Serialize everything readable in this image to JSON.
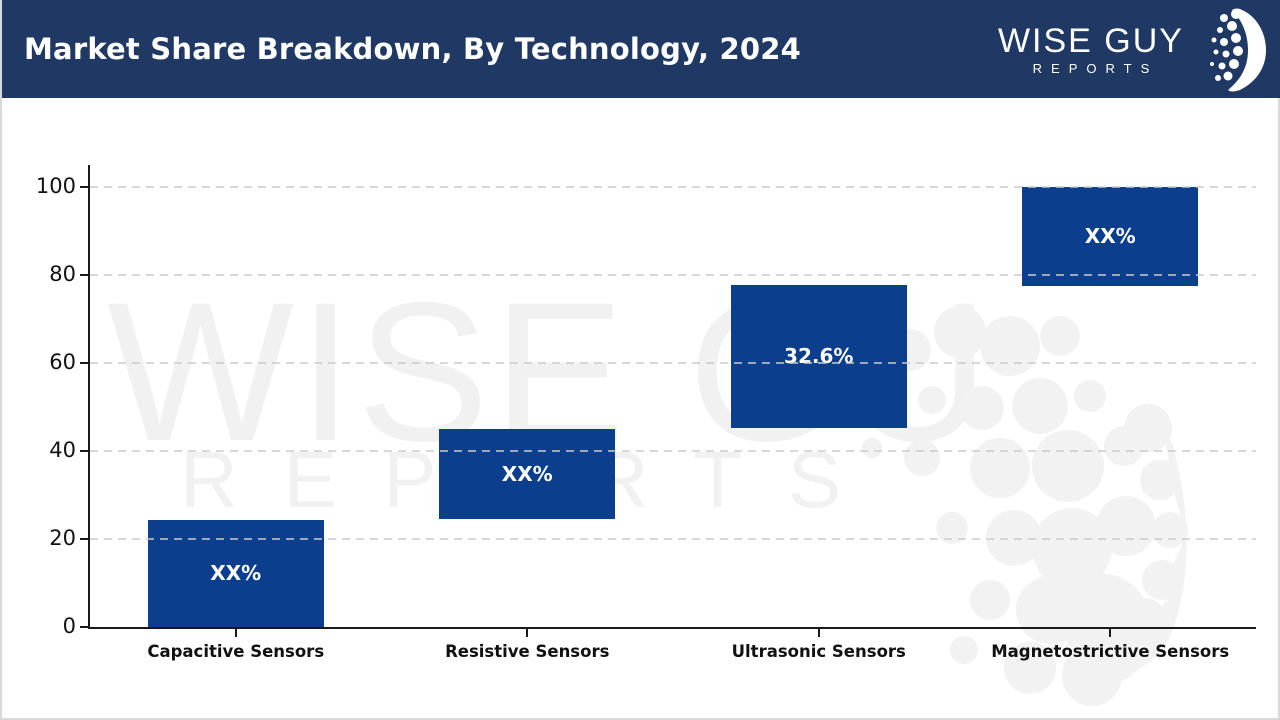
{
  "header": {
    "title": "Market Share Breakdown, By Technology, 2024",
    "bg_color": "#1f3864",
    "logo": {
      "line1": "WISE GUY",
      "line2": "REPORTS"
    }
  },
  "watermark": {
    "line1": "WISE GU",
    "line2": "REPORTS"
  },
  "chart_data": {
    "type": "bar",
    "subtype": "floating-waterfall",
    "title": "Market Share Breakdown, By Technology, 2024",
    "categories": [
      "Capacitive Sensors",
      "Resistive Sensors",
      "Ultrasonic Sensors",
      "Magnetostrictive Sensors"
    ],
    "bars": [
      {
        "category": "Capacitive Sensors",
        "start": 0,
        "end": 24.4,
        "label": "XX%"
      },
      {
        "category": "Resistive Sensors",
        "start": 24.6,
        "end": 44.9,
        "label": "XX%"
      },
      {
        "category": "Ultrasonic Sensors",
        "start": 45.2,
        "end": 77.8,
        "label": "32.6%"
      },
      {
        "category": "Magnetostrictive Sensors",
        "start": 77.6,
        "end": 100,
        "label": "XX%"
      }
    ],
    "xlabel": "",
    "ylabel": "",
    "ylim": [
      0,
      100
    ],
    "yticks": [
      0,
      20,
      40,
      60,
      80,
      100
    ],
    "grid": "horizontal-dashed",
    "legend": "none",
    "colors": {
      "bar": "#0c3e8e",
      "bar_label": "#ffffff",
      "axis": "#1a1a1a",
      "grid": "#cbcbcb",
      "header_bg": "#1f3864",
      "watermark": "#f1f1f1"
    }
  }
}
